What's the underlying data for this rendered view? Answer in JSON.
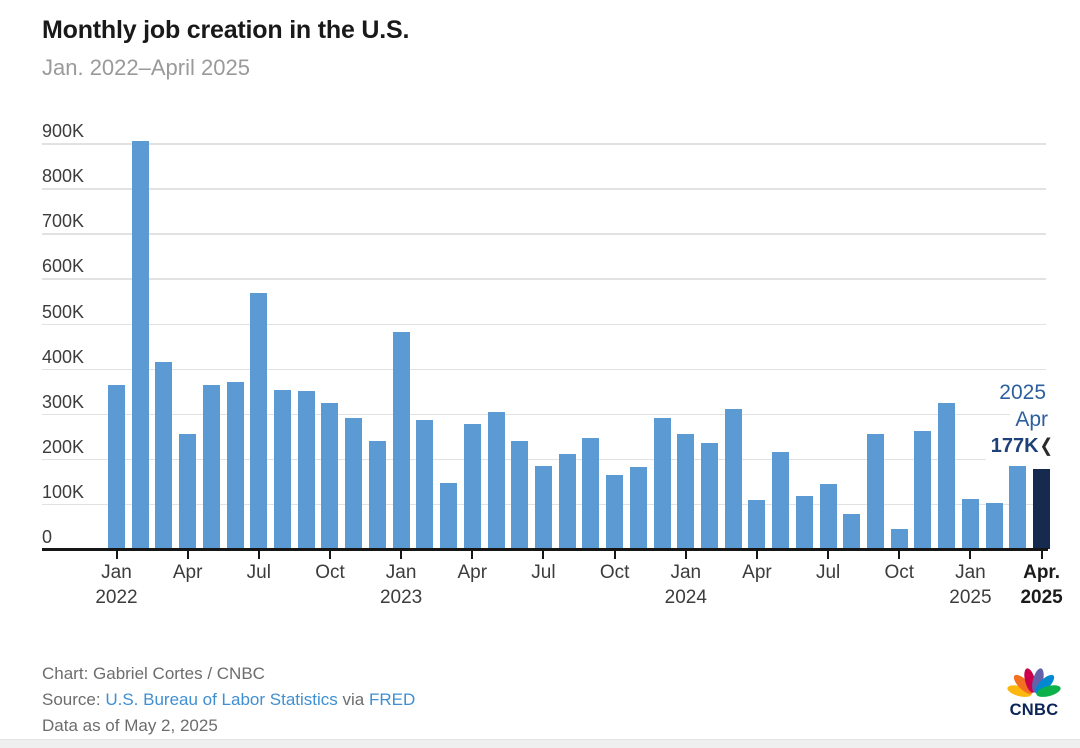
{
  "header": {
    "title": "Monthly job creation in the U.S.",
    "subtitle": "Jan. 2022–April 2025"
  },
  "chart_data": {
    "type": "bar",
    "title": "Monthly job creation in the U.S.",
    "subtitle": "Jan. 2022–April 2025",
    "unit": "jobs (thousands, shown as K)",
    "x": [
      "Jan 2022",
      "Feb 2022",
      "Mar 2022",
      "Apr 2022",
      "May 2022",
      "Jun 2022",
      "Jul 2022",
      "Aug 2022",
      "Sep 2022",
      "Oct 2022",
      "Nov 2022",
      "Dec 2022",
      "Jan 2023",
      "Feb 2023",
      "Mar 2023",
      "Apr 2023",
      "May 2023",
      "Jun 2023",
      "Jul 2023",
      "Aug 2023",
      "Sep 2023",
      "Oct 2023",
      "Nov 2023",
      "Dec 2023",
      "Jan 2024",
      "Feb 2024",
      "Mar 2024",
      "Apr 2024",
      "May 2024",
      "Jun 2024",
      "Jul 2024",
      "Aug 2024",
      "Sep 2024",
      "Oct 2024",
      "Nov 2024",
      "Dec 2024",
      "Jan 2025",
      "Feb 2025",
      "Mar 2025",
      "Apr 2025"
    ],
    "values": [
      364,
      904,
      414,
      254,
      364,
      370,
      568,
      352,
      350,
      324,
      290,
      239,
      482,
      287,
      146,
      278,
      303,
      240,
      184,
      210,
      246,
      165,
      182,
      290,
      256,
      236,
      310,
      108,
      216,
      118,
      144,
      78,
      255,
      44,
      261,
      323,
      111,
      102,
      185,
      177
    ],
    "ylim": [
      0,
      900
    ],
    "grid": true,
    "legend_position": "none",
    "yticks": [
      {
        "v": 0,
        "label": "0"
      },
      {
        "v": 100,
        "label": "100K"
      },
      {
        "v": 200,
        "label": "200K"
      },
      {
        "v": 300,
        "label": "300K"
      },
      {
        "v": 400,
        "label": "400K"
      },
      {
        "v": 500,
        "label": "500K"
      },
      {
        "v": 600,
        "label": "600K"
      },
      {
        "v": 700,
        "label": "700K"
      },
      {
        "v": 800,
        "label": "800K"
      },
      {
        "v": 900,
        "label": "900K"
      }
    ],
    "xticks": [
      {
        "index": 0,
        "line1": "Jan",
        "line2": "2022",
        "bold": false
      },
      {
        "index": 3,
        "line1": "Apr",
        "line2": "",
        "bold": false
      },
      {
        "index": 6,
        "line1": "Jul",
        "line2": "",
        "bold": false
      },
      {
        "index": 9,
        "line1": "Oct",
        "line2": "",
        "bold": false
      },
      {
        "index": 12,
        "line1": "Jan",
        "line2": "2023",
        "bold": false
      },
      {
        "index": 15,
        "line1": "Apr",
        "line2": "",
        "bold": false
      },
      {
        "index": 18,
        "line1": "Jul",
        "line2": "",
        "bold": false
      },
      {
        "index": 21,
        "line1": "Oct",
        "line2": "",
        "bold": false
      },
      {
        "index": 24,
        "line1": "Jan",
        "line2": "2024",
        "bold": false
      },
      {
        "index": 27,
        "line1": "Apr",
        "line2": "",
        "bold": false
      },
      {
        "index": 30,
        "line1": "Jul",
        "line2": "",
        "bold": false
      },
      {
        "index": 33,
        "line1": "Oct",
        "line2": "",
        "bold": false
      },
      {
        "index": 36,
        "line1": "Jan",
        "line2": "2025",
        "bold": false
      },
      {
        "index": 39,
        "line1": "Apr.",
        "line2": "2025",
        "bold": true
      }
    ],
    "bar_color": "#5b9ad2",
    "highlight_color": "#16294e",
    "highlight_index": 39,
    "annotation": {
      "year": "2025",
      "month": "Apr",
      "value": "177K",
      "arrow": "❮"
    }
  },
  "colors": {
    "bar": "#5b9ad2",
    "bar_highlight": "#16294e",
    "annotation_text": "#2d5f9e",
    "annotation_value": "#1d4178",
    "link": "#3f8fd2",
    "footer_text": "#6d6d6d",
    "axis_text": "#3c3c3c",
    "title": "#191919",
    "subtitle": "#9a9a9a"
  },
  "footer": {
    "credit_line": "Chart: Gabriel Cortes / CNBC",
    "source_prefix": "Source:",
    "source_link1": "U.S. Bureau of Labor Statistics",
    "source_mid": "via",
    "source_link2": "FRED",
    "data_as_of": "Data as of May 2, 2025"
  },
  "logo": {
    "brand": "CNBC",
    "feather_colors": [
      "#fcb711",
      "#f37021",
      "#cc004c",
      "#6460aa",
      "#0089d0",
      "#0db14b"
    ],
    "wordmark_color": "#0b2558"
  }
}
